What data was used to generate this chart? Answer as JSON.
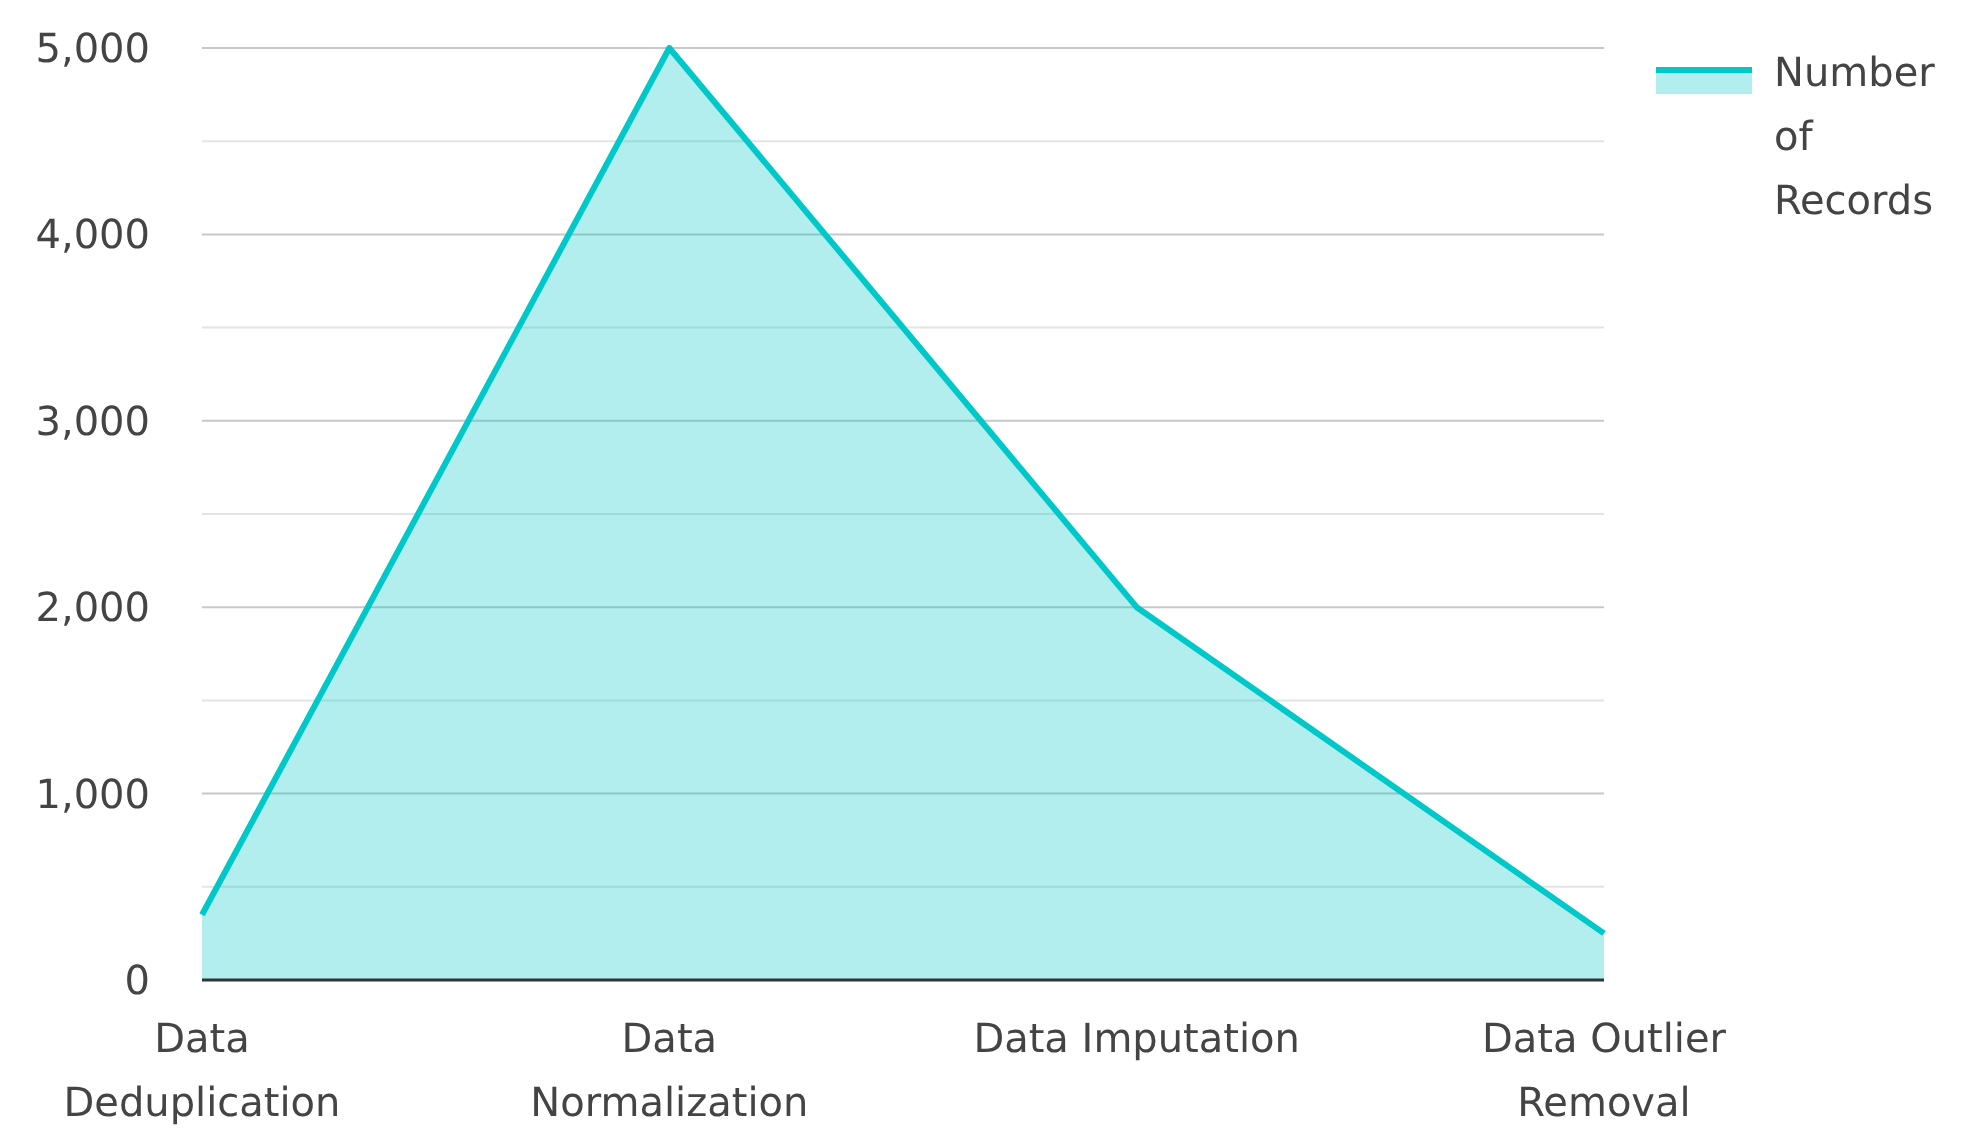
{
  "chart_data": {
    "type": "area",
    "categories": [
      "Data Deduplication",
      "Data Normalization",
      "Data Imputation",
      "Data Outlier Removal"
    ],
    "series": [
      {
        "name": "Number of Records",
        "color": "#00c8c8",
        "values": [
          350,
          5000,
          2000,
          250
        ]
      }
    ],
    "ylim": [
      0,
      5000
    ],
    "yticks": [
      0,
      {
        "value": 500,
        "label": null
      },
      {
        "value": 1000,
        "label": "1,000"
      },
      {
        "value": 1500,
        "label": null
      },
      {
        "value": 2000,
        "label": "2,000"
      },
      {
        "value": 2500,
        "label": null
      },
      {
        "value": 3000,
        "label": "3,000"
      },
      {
        "value": 3500,
        "label": null
      },
      {
        "value": 4000,
        "label": "4,000"
      },
      {
        "value": 4500,
        "label": null
      },
      {
        "value": 5000,
        "label": "5,000"
      }
    ],
    "grid": true,
    "legend": "top right"
  }
}
